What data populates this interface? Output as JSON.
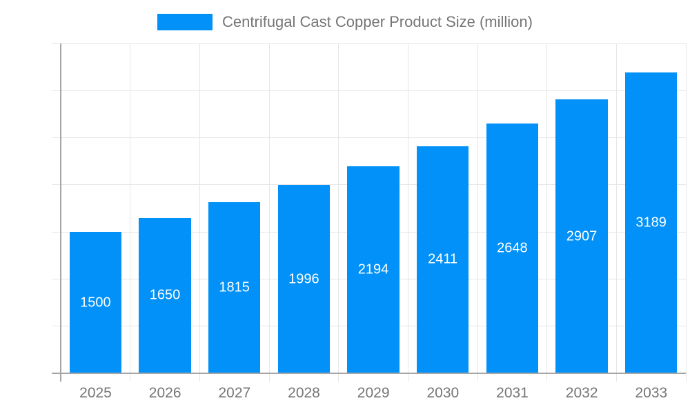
{
  "chart_data": {
    "type": "bar",
    "title": "Centrifugal Cast Copper Product Size (million)",
    "categories": [
      "2025",
      "2026",
      "2027",
      "2028",
      "2029",
      "2030",
      "2031",
      "2032",
      "2033"
    ],
    "values": [
      1500,
      1650,
      1815,
      1996,
      2194,
      2411,
      2648,
      2907,
      3189
    ],
    "xlabel": "",
    "ylabel": "",
    "ylim": [
      0,
      3500
    ],
    "ytick_step": 500,
    "ytick_labels": [
      "0",
      "500",
      "1000",
      "1500",
      "2000",
      "2500",
      "3000",
      "3500"
    ],
    "grid": "on",
    "legend_position": "top-center",
    "bar_color": "#0291f8",
    "bar_label_color": "#ffffff",
    "axis_label_color": "#757575",
    "gridline_color": "#e6e6e6",
    "axis_line_color": "#a6a6a6",
    "bar_width_fraction": 0.75
  }
}
